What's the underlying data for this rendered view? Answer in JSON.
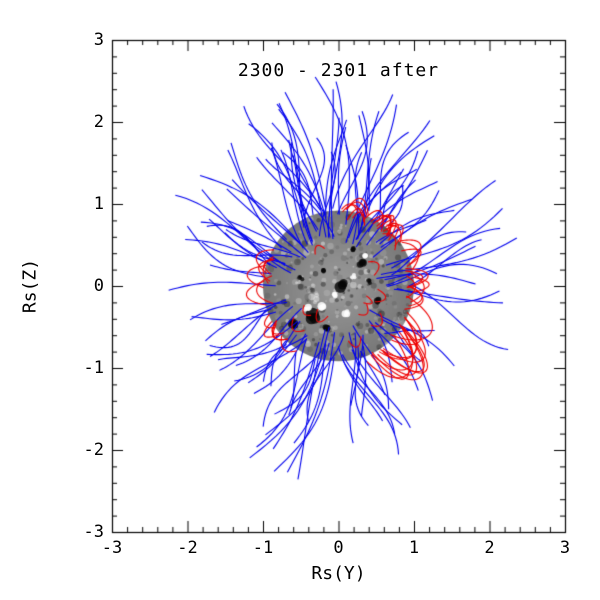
{
  "figure": {
    "title": "2300 - 2301 after",
    "xlabel": "Rs(Y)",
    "ylabel": "Rs(Z)"
  },
  "chart_data": {
    "type": "line",
    "title": "2300 - 2301 after",
    "xlabel": "Rs(Y)",
    "ylabel": "Rs(Z)",
    "xlim": [
      -3,
      3
    ],
    "ylim": [
      -3,
      3
    ],
    "xticks": [
      -3,
      -2,
      -1,
      0,
      1,
      2,
      3
    ],
    "yticks": [
      -3,
      -2,
      -1,
      0,
      1,
      2,
      3
    ],
    "minor_tick_step": 0.2,
    "grid": false,
    "legend": "none",
    "background": "#ffffff",
    "frame_color": "#000000",
    "sun_disk": {
      "center": [
        0,
        0
      ],
      "radius": 1.0,
      "base_color": "#949494",
      "edge_color": "#787878",
      "texture": "magnetogram",
      "speckles": {
        "count": 340,
        "seed": 11
      },
      "dark_patches": [
        [
          -0.35,
          -0.38,
          0.09
        ],
        [
          -0.58,
          -0.45,
          0.07
        ],
        [
          -0.15,
          -0.5,
          0.05
        ],
        [
          0.05,
          0.02,
          0.08
        ],
        [
          0.3,
          0.28,
          0.06
        ],
        [
          0.52,
          -0.18,
          0.05
        ],
        [
          -0.2,
          0.18,
          0.05
        ],
        [
          0.18,
          0.45,
          0.05
        ],
        [
          -0.5,
          0.1,
          0.04
        ],
        [
          0.4,
          0.05,
          0.04
        ]
      ],
      "bright_patches": [
        [
          -0.22,
          -0.24,
          0.06
        ],
        [
          0.1,
          -0.33,
          0.05
        ],
        [
          -0.42,
          -0.28,
          0.05
        ],
        [
          0.2,
          0.12,
          0.04
        ],
        [
          -0.05,
          -0.12,
          0.05
        ],
        [
          0.35,
          0.38,
          0.04
        ]
      ]
    },
    "open_field_lines": {
      "name": "open field lines",
      "color": "#0000ee",
      "width": 1.1,
      "seed": 23,
      "r_start": [
        0.5,
        1.0
      ],
      "clusters": [
        {
          "angle": 90,
          "spread": 13,
          "count": 14,
          "r_end": [
            1.9,
            2.6
          ],
          "drift": 22
        },
        {
          "angle": 65,
          "spread": 11,
          "count": 12,
          "r_end": [
            1.6,
            2.45
          ],
          "drift": 20
        },
        {
          "angle": 45,
          "spread": 10,
          "count": 8,
          "r_end": [
            1.4,
            2.2
          ],
          "drift": 16
        },
        {
          "angle": 115,
          "spread": 11,
          "count": 12,
          "r_end": [
            1.6,
            2.4
          ],
          "drift": 20
        },
        {
          "angle": 140,
          "spread": 11,
          "count": 10,
          "r_end": [
            1.5,
            2.3
          ],
          "drift": 18
        },
        {
          "angle": 170,
          "spread": 12,
          "count": 10,
          "r_end": [
            1.6,
            2.5
          ],
          "drift": 16
        },
        {
          "angle": 200,
          "spread": 10,
          "count": 8,
          "r_end": [
            1.4,
            2.2
          ],
          "drift": 16
        },
        {
          "angle": 226,
          "spread": 12,
          "count": 10,
          "r_end": [
            1.5,
            2.3
          ],
          "drift": 18
        },
        {
          "angle": 263,
          "spread": 14,
          "count": 14,
          "r_end": [
            1.6,
            2.45
          ],
          "drift": 20
        },
        {
          "angle": 292,
          "spread": 10,
          "count": 8,
          "r_end": [
            1.4,
            2.0
          ],
          "drift": 16
        },
        {
          "angle": 322,
          "spread": 10,
          "count": 7,
          "r_end": [
            1.3,
            1.9
          ],
          "drift": 14
        },
        {
          "angle": 10,
          "spread": 14,
          "count": 12,
          "r_end": [
            1.6,
            2.5
          ],
          "drift": 20
        }
      ]
    },
    "closed_field_lines": {
      "name": "closed field lines",
      "color": "#ee0000",
      "width": 1.1,
      "seed": 57,
      "clusters": [
        {
          "angle": -38,
          "spread": 14,
          "count": 12,
          "height": [
            0.25,
            0.65
          ],
          "span": [
            20,
            38
          ],
          "rfoot": [
            0.9,
            1.0
          ]
        },
        {
          "angle": 8,
          "spread": 18,
          "count": 10,
          "height": [
            0.08,
            0.3
          ],
          "span": [
            10,
            22
          ],
          "rfoot": [
            0.9,
            1.0
          ]
        },
        {
          "angle": 48,
          "spread": 12,
          "count": 10,
          "height": [
            0.08,
            0.25
          ],
          "span": [
            10,
            20
          ],
          "rfoot": [
            0.85,
            0.98
          ]
        },
        {
          "angle": 80,
          "spread": 10,
          "count": 6,
          "height": [
            0.06,
            0.18
          ],
          "span": [
            8,
            18
          ],
          "rfoot": [
            0.8,
            0.95
          ]
        },
        {
          "angle": 175,
          "spread": 15,
          "count": 7,
          "height": [
            0.08,
            0.25
          ],
          "span": [
            10,
            22
          ],
          "rfoot": [
            0.88,
            1.0
          ]
        },
        {
          "angle": 215,
          "spread": 13,
          "count": 6,
          "height": [
            0.08,
            0.2
          ],
          "span": [
            10,
            18
          ],
          "rfoot": [
            0.88,
            1.0
          ]
        },
        {
          "angle": 0,
          "spread": 180,
          "count": 10,
          "height": [
            0.05,
            0.12
          ],
          "span": [
            12,
            26
          ],
          "rfoot": [
            0.35,
            0.75
          ]
        }
      ]
    }
  }
}
